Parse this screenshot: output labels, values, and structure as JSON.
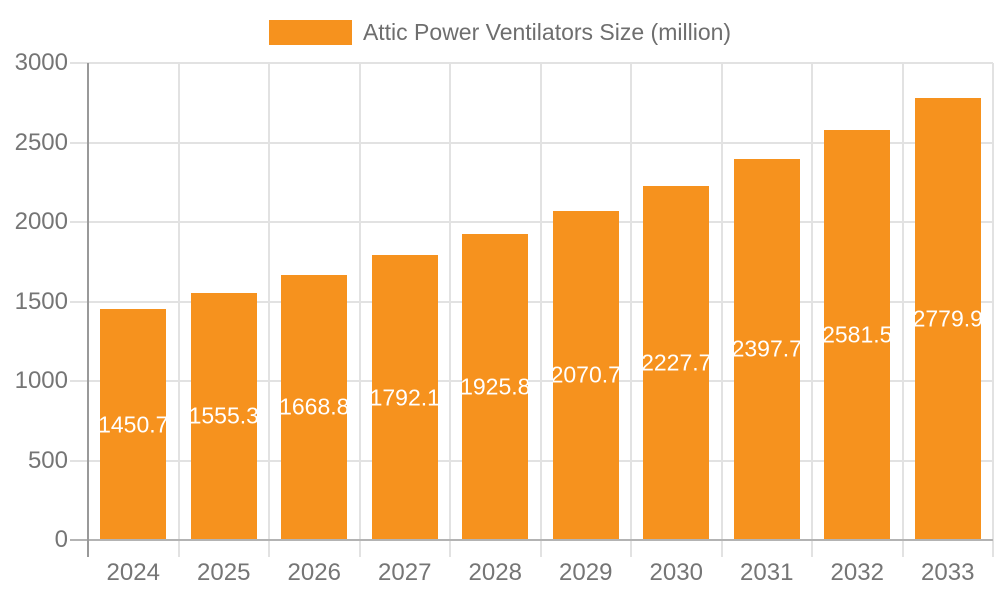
{
  "legend": {
    "label": "Attic Power Ventilators Size (million)"
  },
  "chart_data": {
    "type": "bar",
    "title": "Attic Power Ventilators Size (million)",
    "categories": [
      "2024",
      "2025",
      "2026",
      "2027",
      "2028",
      "2029",
      "2030",
      "2031",
      "2032",
      "2033"
    ],
    "values": [
      1450.7,
      1555.3,
      1668.8,
      1792.1,
      1925.8,
      2070.7,
      2227.7,
      2397.7,
      2581.5,
      2779.9
    ],
    "bar_labels": [
      "1450.7",
      "1555.3",
      "1668.8",
      "1792.1",
      "1925.8",
      "2070.7",
      "2227.7",
      "2397.7",
      "2581.5",
      "2779.9"
    ],
    "xlabel": "",
    "ylabel": "",
    "ylim": [
      0,
      3000
    ],
    "yticks": [
      0,
      500,
      1000,
      1500,
      2000,
      2500,
      3000
    ],
    "ytick_labels": [
      "0",
      "500",
      "1000",
      "1500",
      "2000",
      "2500",
      "3000"
    ],
    "grid": true,
    "legend_position": "top-center",
    "colors": {
      "bar": "#F6921E",
      "bar_label": "#FFFFFF",
      "axis_text": "#757575",
      "legend_text": "#6E6E6E",
      "gridline": "#E2E2E2",
      "baseline": "#B3B3B3",
      "axis_line": "#999999",
      "background": "#FFFFFF"
    }
  }
}
